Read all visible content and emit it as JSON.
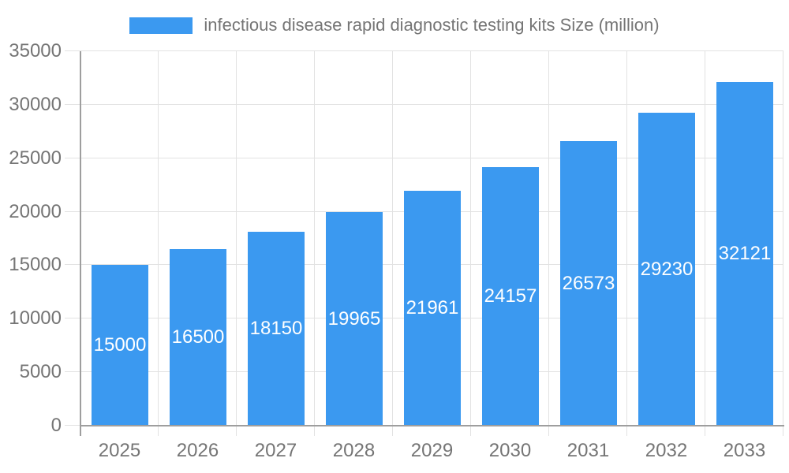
{
  "chart_data": {
    "type": "bar",
    "title": "infectious disease rapid diagnostic testing kits Size (million)",
    "legend_label": "infectious disease rapid diagnostic testing kits Size (million)",
    "categories": [
      "2025",
      "2026",
      "2027",
      "2028",
      "2029",
      "2030",
      "2031",
      "2032",
      "2033"
    ],
    "series": [
      {
        "name": "infectious disease rapid diagnostic testing kits Size (million)",
        "values": [
          15000,
          16500,
          18150,
          19965,
          21961,
          24157,
          26573,
          29230,
          32121
        ]
      }
    ],
    "bar_value_labels": [
      "15000",
      "16500",
      "18150",
      "19965",
      "21961",
      "24157",
      "26573",
      "29230",
      "32121"
    ],
    "xlabel": "",
    "ylabel": "",
    "ylim": [
      0,
      35000
    ],
    "y_ticks": [
      0,
      5000,
      10000,
      15000,
      20000,
      25000,
      30000,
      35000
    ],
    "y_tick_labels": [
      "0",
      "5000",
      "10000",
      "15000",
      "20000",
      "25000",
      "30000",
      "35000"
    ],
    "grid": true,
    "legend_position": "top-center",
    "colors": {
      "bar": "#3B99F0",
      "label_text": "#757575",
      "bar_value_text": "#FFFFFF",
      "gridline": "#E2E2E2",
      "axis_line": "#9E9E9E",
      "background": "#FFFFFF"
    }
  }
}
